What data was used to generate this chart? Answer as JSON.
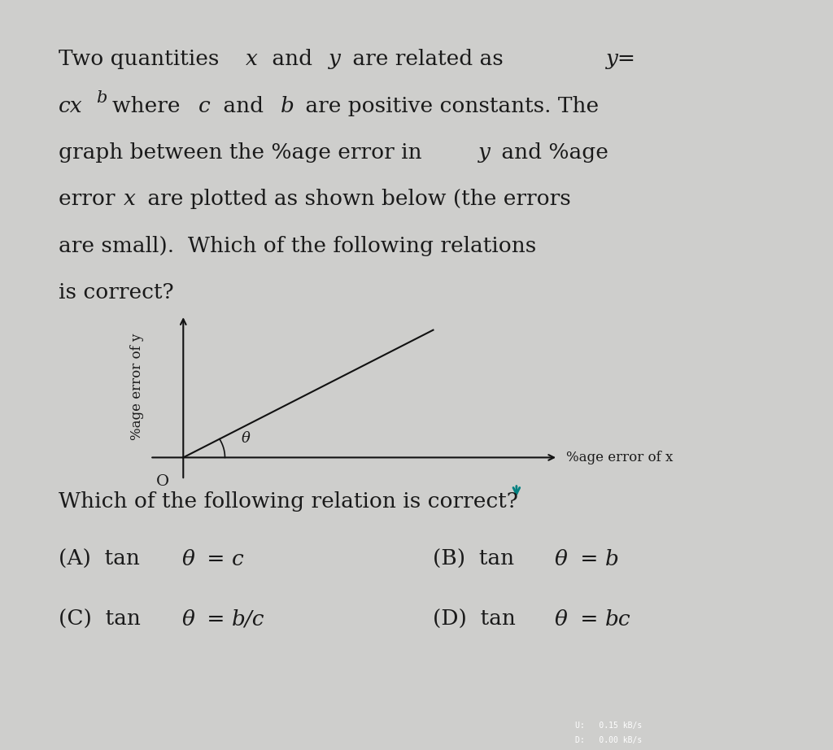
{
  "bg_color": "#cececc",
  "text_color": "#1a1a1a",
  "ylabel": "%age error of y",
  "xlabel": "%age error of x",
  "origin_label": "O",
  "theta_label": "θ",
  "line_color": "#111111",
  "arrow_color": "#008080",
  "bottom_bar_color": "#111111",
  "fontsize_para": 19,
  "fontsize_opt": 19,
  "fontsize_graph_label": 12
}
